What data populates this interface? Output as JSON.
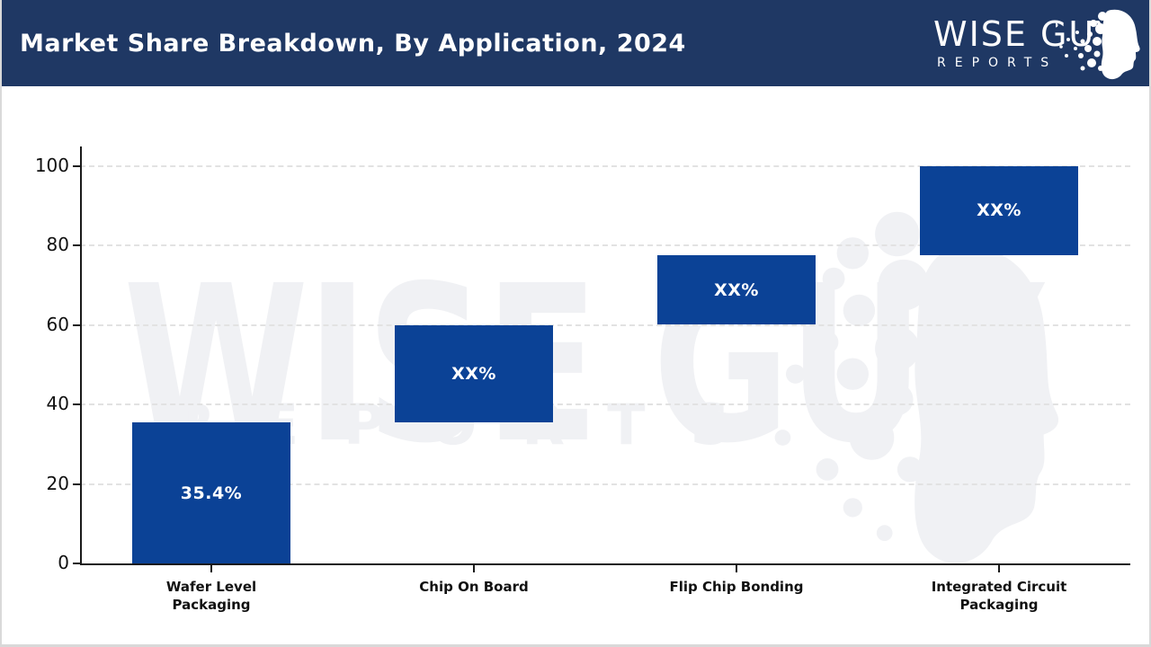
{
  "header": {
    "title": "Market Share Breakdown, By Application, 2024",
    "logo_line1": "WISE GUY",
    "logo_line2": "REPORTS"
  },
  "watermark": {
    "line1": "WISE GUY",
    "line2": "REPORTS"
  },
  "colors": {
    "header_bg": "#1f3864",
    "bar_fill": "#0b4296",
    "axis": "#1a1a1a",
    "gridline": "#e2e2e2",
    "watermark": "#f0f1f4",
    "value_label": "#ffffff"
  },
  "chart_data": {
    "type": "bar",
    "subtype": "waterfall",
    "title": "Market Share Breakdown, By Application, 2024",
    "xlabel": "",
    "ylabel": "",
    "ylim": [
      0,
      105
    ],
    "yticks": [
      0,
      20,
      40,
      60,
      80,
      100
    ],
    "grid": "dashed-horizontal",
    "legend": "none",
    "categories": [
      "Wafer Level Packaging",
      "Chip On Board",
      "Flip Chip Bonding",
      "Integrated Circuit Packaging"
    ],
    "segments": [
      {
        "category": "Wafer Level Packaging",
        "start": 0,
        "end": 35.4,
        "value_label": "35.4%"
      },
      {
        "category": "Chip On Board",
        "start": 35.4,
        "end": 60.0,
        "value_label": "XX%"
      },
      {
        "category": "Flip Chip Bonding",
        "start": 60.0,
        "end": 77.6,
        "value_label": "XX%"
      },
      {
        "category": "Integrated Circuit Packaging",
        "start": 77.6,
        "end": 100.0,
        "value_label": "XX%"
      }
    ]
  }
}
